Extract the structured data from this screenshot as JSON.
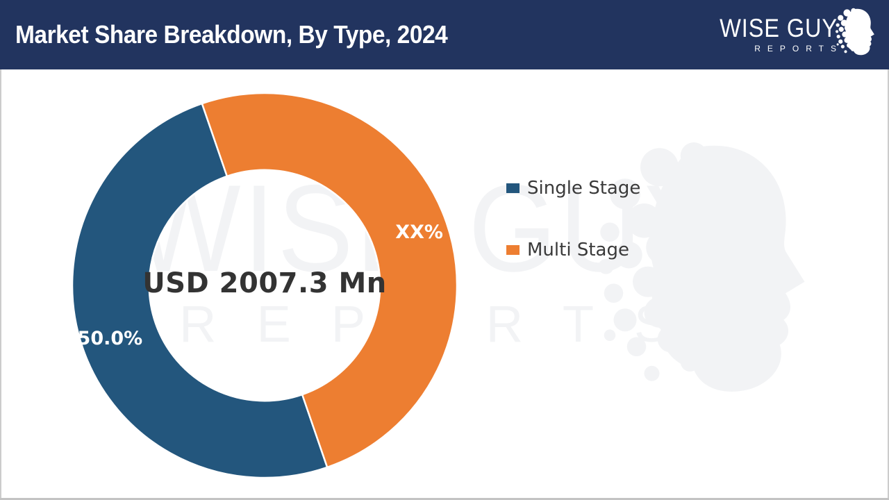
{
  "header": {
    "title": "Market Share Breakdown, By Type, 2024",
    "logo": {
      "line1": "WISE GUY",
      "line2": "REPORTS"
    }
  },
  "watermark": {
    "line1": "WISE GUY",
    "line2": "REPORTS"
  },
  "chart_data": {
    "type": "pie",
    "subtype": "donut",
    "title": "Market Share Breakdown, By Type, 2024",
    "center_label": "USD 2007.3 Mn",
    "start_angle": 109,
    "direction": "counterclockwise",
    "donut_inner_ratio": 0.6,
    "label_radius_ratio": 0.85,
    "slices": [
      {
        "name": "Single Stage",
        "value_pct": 50.0,
        "display_label": "50.0%",
        "color": "#23567D"
      },
      {
        "name": "Multi Stage",
        "value_pct": 50.0,
        "display_label": "XX%",
        "color": "#ED7E31"
      }
    ],
    "legend_position": "right"
  },
  "colors": {
    "header_bg": "#22345F",
    "single_stage": "#23567D",
    "multi_stage": "#ED7E31",
    "center_text": "#333333",
    "legend_text": "#3A3A3A",
    "watermark": "#F2F3F5",
    "slice_label_text": "#FFFFFF"
  }
}
